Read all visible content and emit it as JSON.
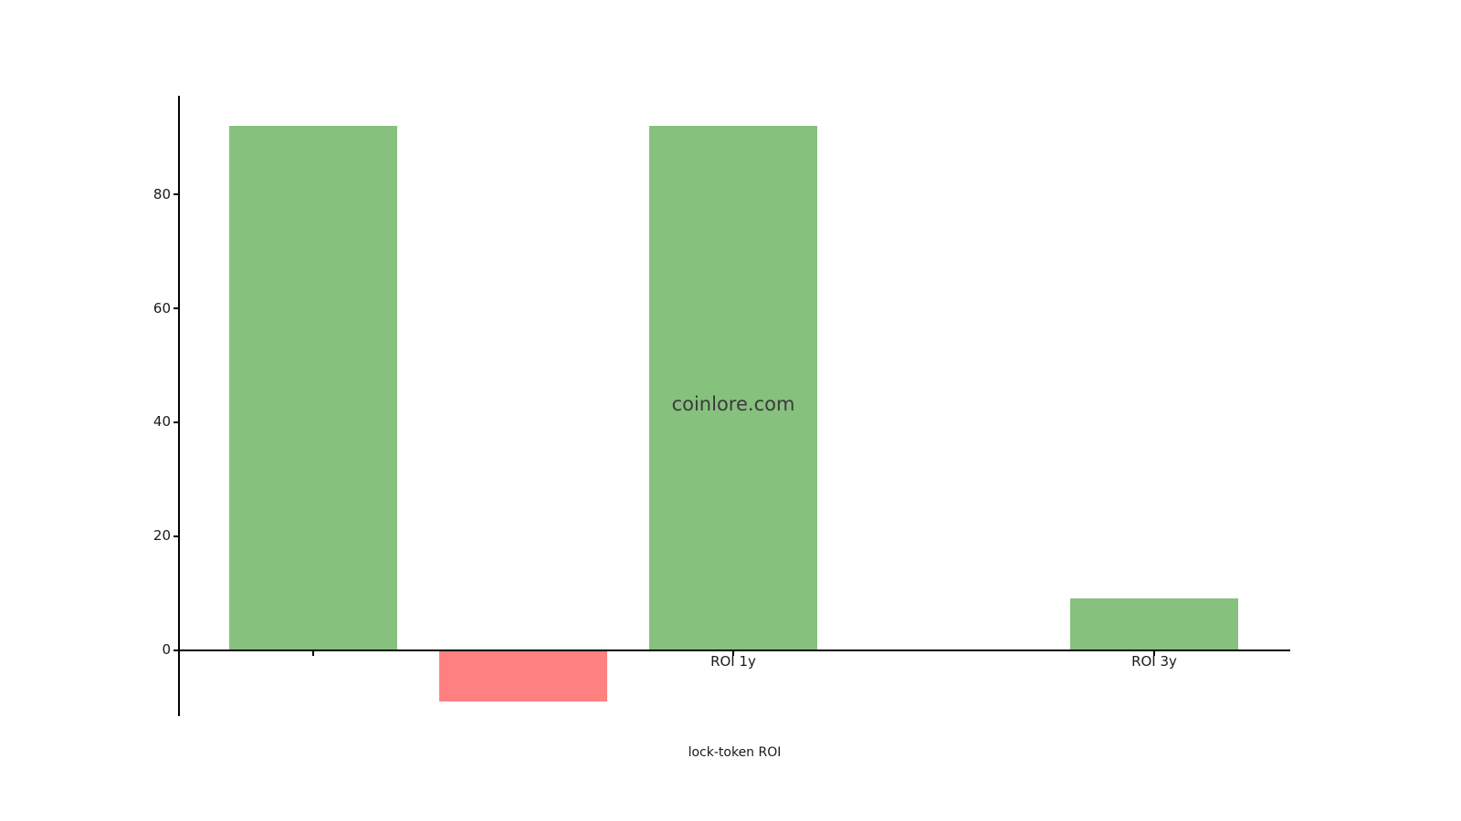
{
  "chart_data": {
    "type": "bar",
    "title": "lock-token ROI",
    "watermark": "coinlore.com",
    "categories": [
      "",
      "",
      "ROI 1y",
      "ROI 3y"
    ],
    "values": [
      92,
      -9,
      92,
      9
    ],
    "xlabel": "",
    "ylabel": "",
    "yticks": [
      0,
      20,
      40,
      60,
      80
    ],
    "ylim": [
      -11.6,
      97.4
    ],
    "grid": false,
    "legend": null,
    "colors": {
      "positive": "#86c17e",
      "negative": "#ff8080",
      "axis": "#000000",
      "tick_text": "#1a1a1a",
      "watermark_text": "#3b3b3b"
    }
  }
}
